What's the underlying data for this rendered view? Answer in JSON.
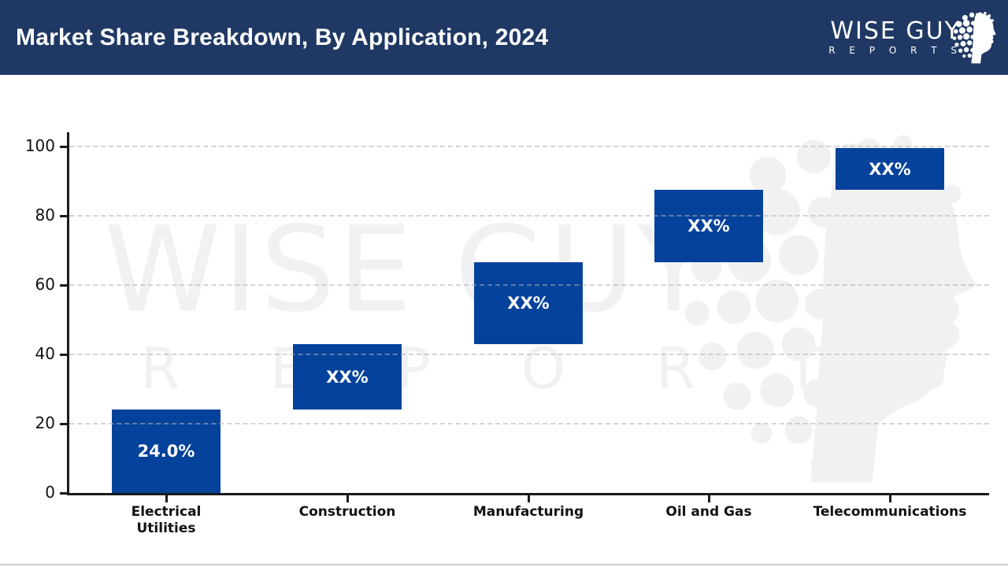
{
  "header": {
    "title": "Market Share Breakdown, By Application, 2024",
    "logo": {
      "line1": "WISE GUY",
      "line2": "R E P O R T S"
    }
  },
  "watermark": {
    "line1": "WISE GUY",
    "line2": "R E P O R T S"
  },
  "colors": {
    "header_bg": "#1F3864",
    "bar": "#05429B",
    "bar_label": "#FFFFFF",
    "axis": "#1A1A1A",
    "grid": "#B0B0B0",
    "watermark": "#F1F1F3"
  },
  "chart_data": {
    "type": "bar",
    "variant": "waterfall",
    "title": "Market Share Breakdown, By Application, 2024",
    "xlabel": "",
    "ylabel": "",
    "categories": [
      "Electrical\nUtilities",
      "Construction",
      "Manufacturing",
      "Oil and Gas",
      "Telecommunications"
    ],
    "segments": [
      {
        "category": "Electrical Utilities",
        "start": 0,
        "end": 24,
        "label": "24.0%"
      },
      {
        "category": "Construction",
        "start": 24,
        "end": 43,
        "label": "XX%"
      },
      {
        "category": "Manufacturing",
        "start": 43,
        "end": 66.5,
        "label": "XX%"
      },
      {
        "category": "Oil and Gas",
        "start": 66.5,
        "end": 87.5,
        "label": "XX%"
      },
      {
        "category": "Telecommunications",
        "start": 87.5,
        "end": 99.5,
        "label": "XX%"
      }
    ],
    "yticks": [
      0,
      20,
      40,
      60,
      80,
      100
    ],
    "ylim": [
      0,
      104
    ],
    "grid": "horizontal-dashed",
    "legend": "none"
  }
}
